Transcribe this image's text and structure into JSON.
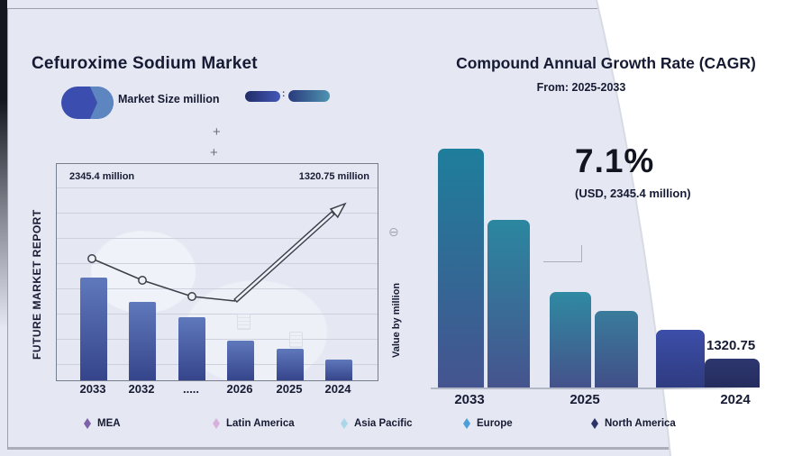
{
  "header": {
    "title": "Cefuroxime Sodium Market",
    "series_label": "Market Size million",
    "colon": ":",
    "plus": "+"
  },
  "left_chart": {
    "brand_vertical_label": "FUTURE MARKET REPORT",
    "value_axis_label": "Value by million",
    "start_value": "2345.4 million",
    "end_value": "1320.75 million",
    "minus_icon": "⊖"
  },
  "right_panel": {
    "title": "Compound Annual Growth Rate (CAGR)",
    "subtitle": "From: 2025-2033",
    "cagr": "7.1%",
    "cagr_note": "(USD, 2345.4 million)",
    "annotation_2024": "1320.75"
  },
  "legend": [
    {
      "label": "MEA",
      "color": "#7e61ab"
    },
    {
      "label": "Latin America",
      "color": "#d7b0dc"
    },
    {
      "label": "Asia Pacific",
      "color": "#aad6ea"
    },
    {
      "label": "Europe",
      "color": "#4c9edb"
    },
    {
      "label": "North America",
      "color": "#2b3468"
    }
  ],
  "chart_data": [
    {
      "type": "bar",
      "title": "Cefuroxime Sodium Market size by year",
      "ylabel": "Value by million",
      "categories": [
        "2033",
        "2032",
        ".....",
        "2026",
        "2025",
        "2024"
      ],
      "values_relative": [
        1.0,
        0.76,
        0.61,
        0.39,
        0.31,
        0.2
      ],
      "annotations": {
        "2033": "2345.4 million",
        "2024": "1320.75 million"
      },
      "bar_gradient": [
        "#5f78bc",
        "#36458b"
      ],
      "grid": true,
      "trend_overlay": "declining line with 3 circle markers, then outlined arrow rising to upper right"
    },
    {
      "type": "bar",
      "title": "Compound Annual Growth Rate (CAGR) From: 2025-2033",
      "cagr_percent": 7.1,
      "categories": [
        "2033",
        "2025",
        "2024"
      ],
      "series": [
        {
          "name": "series-left",
          "values_relative": [
            1.0,
            0.4,
            0.24
          ]
        },
        {
          "name": "series-right",
          "values_relative": [
            0.7,
            0.32,
            0.12
          ]
        }
      ],
      "annotations": {
        "2024": "1320.75"
      },
      "bar_gradients": [
        [
          "#1e7e9b",
          "#45548f"
        ],
        [
          "#2b87a0",
          "#46548e"
        ],
        [
          "#2f8aa2",
          "#45528b"
        ],
        [
          "#3a7c9c",
          "#414f88"
        ],
        [
          "#3c4ea9",
          "#2f3b80"
        ],
        [
          "#2d366f",
          "#252d5e"
        ]
      ],
      "grid": false,
      "legend_position": "bottom"
    }
  ]
}
